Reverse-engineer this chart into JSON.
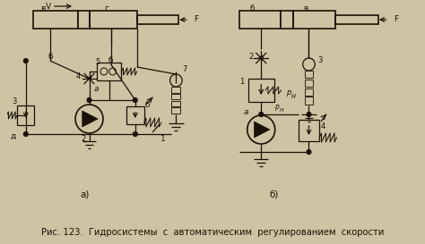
{
  "bg_color": "#cec3a2",
  "line_color": "#1a1208",
  "title_text": "Рис. 123.  Гидросистемы  с  автоматическим  регулированием  скорости",
  "label_a": "а)",
  "label_b": "б)",
  "title_fontsize": 7.2,
  "label_fontsize": 7.5
}
